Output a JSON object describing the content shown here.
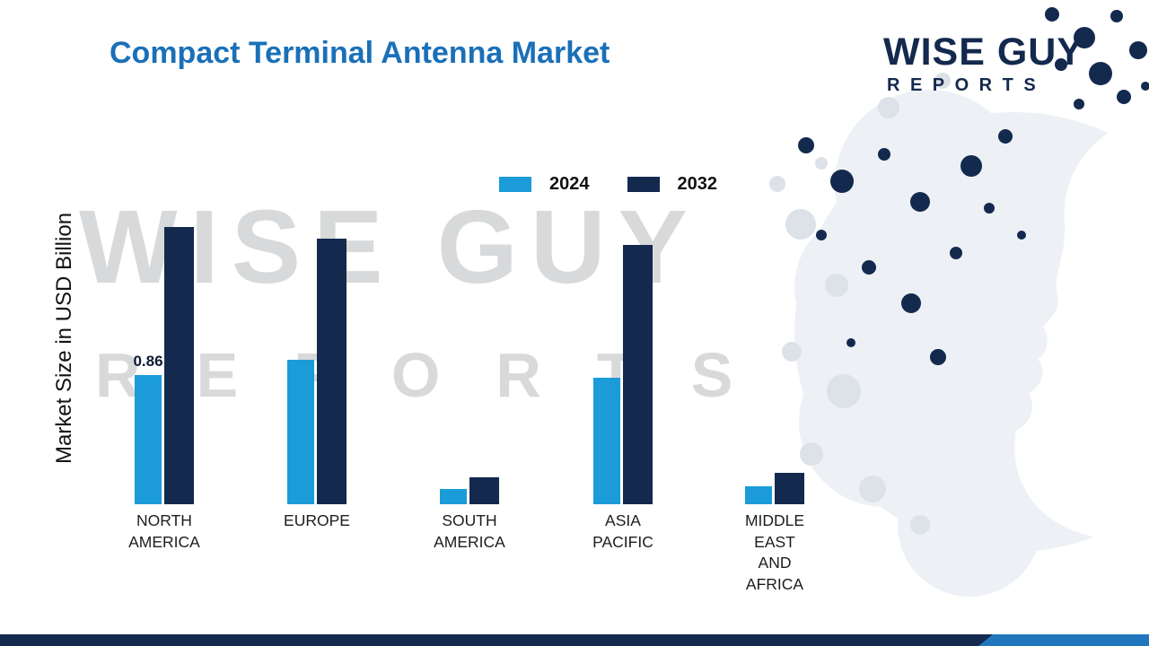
{
  "page": {
    "title": "Compact Terminal Antenna Market"
  },
  "logo": {
    "name": "WISE GUY",
    "sub": "REPORTS"
  },
  "watermark": {
    "line1": "WISE GUY",
    "line2": "REPORTS"
  },
  "colors": {
    "title": "#1a70b8",
    "footer": "#13294e",
    "footer_accent": "#2077bd",
    "watermark": "#d8d9da"
  },
  "chart_data": {
    "type": "bar",
    "title": "Compact Terminal Antenna Market",
    "xlabel": "",
    "ylabel": "Market Size in USD Billion",
    "ylim": [
      0,
      2.0
    ],
    "grid": false,
    "legend_position": "top",
    "categories": [
      "NORTH AMERICA",
      "EUROPE",
      "SOUTH AMERICA",
      "ASIA PACIFIC",
      "MIDDLE EAST AND AFRICA"
    ],
    "category_label_lines": [
      [
        "NORTH",
        "AMERICA"
      ],
      [
        "EUROPE"
      ],
      [
        "SOUTH",
        "AMERICA"
      ],
      [
        "ASIA",
        "PACIFIC"
      ],
      [
        "MIDDLE",
        "EAST",
        "AND",
        "AFRICA"
      ]
    ],
    "series": [
      {
        "name": "2024",
        "color": "#1b9cd8",
        "values": [
          0.86,
          0.96,
          0.1,
          0.84,
          0.12
        ]
      },
      {
        "name": "2032",
        "color": "#13294e",
        "values": [
          1.84,
          1.76,
          0.18,
          1.72,
          0.21
        ]
      }
    ],
    "point_labels": [
      {
        "series": 0,
        "category": 0,
        "text": "0.86"
      }
    ]
  }
}
